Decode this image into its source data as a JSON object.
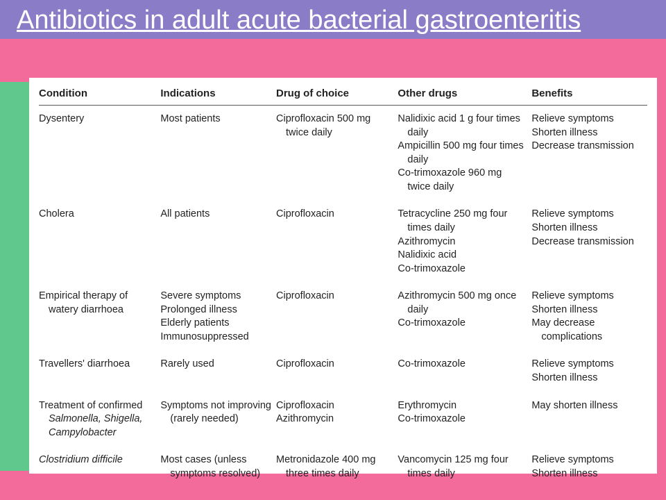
{
  "colors": {
    "slide_bg": "#f36b9a",
    "title_bg": "#8b7cc8",
    "accent": "#60c88d",
    "table_bg": "#ffffff",
    "text": "#222222",
    "title_text": "#ffffff"
  },
  "title": "Antibiotics in adult acute bacterial gastroenteritis",
  "table": {
    "columns": [
      "Condition",
      "Indications",
      "Drug of choice",
      "Other drugs",
      "Benefits"
    ],
    "col_widths_pct": [
      20,
      19,
      20,
      22,
      19
    ],
    "header_fontsize": 15,
    "cell_fontsize": 14.5,
    "rows": [
      {
        "condition": [
          "Dysentery"
        ],
        "indications": [
          "Most patients"
        ],
        "drug_of_choice": [
          "Ciprofloxacin 500 mg twice daily"
        ],
        "other_drugs": [
          "Nalidixic acid 1 g four times daily",
          "Ampicillin 500 mg four times daily",
          "Co-trimoxazole 960 mg twice daily"
        ],
        "benefits": [
          "Relieve symptoms",
          "Shorten illness",
          "Decrease transmission"
        ]
      },
      {
        "condition": [
          "Cholera"
        ],
        "indications": [
          "All patients"
        ],
        "drug_of_choice": [
          "Ciprofloxacin"
        ],
        "other_drugs": [
          "Tetracycline 250 mg four times daily",
          "Azithromycin",
          "Nalidixic acid",
          "Co-trimoxazole"
        ],
        "benefits": [
          "Relieve symptoms",
          "Shorten illness",
          "Decrease transmission"
        ]
      },
      {
        "condition": [
          "Empirical therapy of watery diarrhoea"
        ],
        "indications": [
          "Severe symptoms",
          "Prolonged illness",
          "Elderly patients",
          "Immunosuppressed"
        ],
        "drug_of_choice": [
          "Ciprofloxacin"
        ],
        "other_drugs": [
          "Azithromycin 500 mg once daily",
          "Co-trimoxazole"
        ],
        "benefits": [
          "Relieve symptoms",
          "Shorten illness",
          "May decrease complications"
        ]
      },
      {
        "condition": [
          "Travellers' diarrhoea"
        ],
        "indications": [
          "Rarely used"
        ],
        "drug_of_choice": [
          "Ciprofloxacin"
        ],
        "other_drugs": [
          "Co-trimoxazole"
        ],
        "benefits": [
          "Relieve symptoms",
          "Shorten illness"
        ]
      },
      {
        "condition_html": "Treatment of confirmed <span class='ital'>Salmonella, Shigella, Campylobacter</span>",
        "condition": [
          "Treatment of confirmed Salmonella, Shigella, Campylobacter"
        ],
        "indications": [
          "Symptoms not improving (rarely needed)"
        ],
        "drug_of_choice": [
          "Ciprofloxacin",
          "Azithromycin"
        ],
        "other_drugs": [
          "Erythromycin",
          "Co-trimoxazole"
        ],
        "benefits": [
          "May shorten illness"
        ]
      },
      {
        "condition_html": "<span class='ital'>Clostridium difficile</span>",
        "condition": [
          "Clostridium difficile"
        ],
        "indications": [
          "Most cases (unless symptoms resolved)"
        ],
        "drug_of_choice": [
          "Metronidazole 400 mg three times daily"
        ],
        "other_drugs": [
          "Vancomycin 125 mg four times daily"
        ],
        "benefits": [
          "Relieve symptoms",
          "Shorten illness"
        ]
      }
    ]
  }
}
